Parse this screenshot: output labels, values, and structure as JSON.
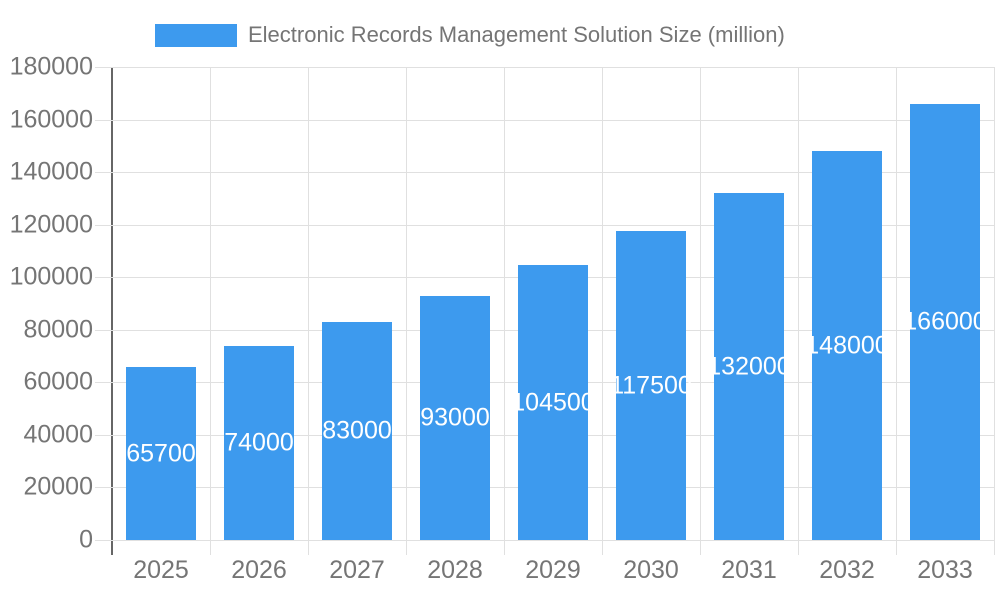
{
  "chart_data": {
    "type": "bar",
    "title": "Electronic Records Management Solution Size (million)",
    "legend": {
      "position": "top",
      "label": "Electronic Records Management Solution Size (million)"
    },
    "categories": [
      "2025",
      "2026",
      "2027",
      "2028",
      "2029",
      "2030",
      "2031",
      "2032",
      "2033"
    ],
    "values": [
      65700,
      74000,
      83000,
      93000,
      104500,
      117500,
      132000,
      148000,
      166000
    ],
    "xlabel": "",
    "ylabel": "",
    "ylim": [
      0,
      180000
    ],
    "yticks": [
      0,
      20000,
      40000,
      60000,
      80000,
      100000,
      120000,
      140000,
      160000,
      180000
    ],
    "grid": true,
    "colors": {
      "bar": "#3D9AEE",
      "bar_value_label": "#ffffff",
      "axis_text": "#757575",
      "grid_line": "#e0e0e0",
      "axis_line": "#666666"
    }
  }
}
